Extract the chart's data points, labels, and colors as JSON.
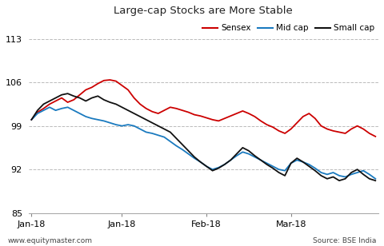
{
  "title": "Large-cap Stocks are More Stable",
  "ylabel_ticks": [
    85,
    92,
    99,
    106,
    113
  ],
  "footer_left": "www.equitymaster.com",
  "footer_right": "Source: BSE India",
  "sensex": [
    100.0,
    101.2,
    101.8,
    102.5,
    103.0,
    103.5,
    102.8,
    103.2,
    104.0,
    104.8,
    105.2,
    105.8,
    106.3,
    106.4,
    106.2,
    105.5,
    104.8,
    103.5,
    102.5,
    101.8,
    101.3,
    101.0,
    101.5,
    102.0,
    101.8,
    101.5,
    101.2,
    100.8,
    100.6,
    100.3,
    100.0,
    99.8,
    100.2,
    100.6,
    101.0,
    101.4,
    101.0,
    100.5,
    99.8,
    99.2,
    98.8,
    98.2,
    97.8,
    98.5,
    99.5,
    100.5,
    101.0,
    100.2,
    99.0,
    98.5,
    98.2,
    98.0,
    97.8,
    98.5,
    99.0,
    98.5,
    97.8,
    97.3
  ],
  "midcap": [
    100.0,
    101.0,
    101.5,
    102.0,
    101.5,
    101.8,
    102.0,
    101.5,
    101.0,
    100.5,
    100.2,
    100.0,
    99.8,
    99.5,
    99.2,
    99.0,
    99.2,
    99.0,
    98.5,
    98.0,
    97.8,
    97.5,
    97.2,
    96.5,
    95.8,
    95.2,
    94.5,
    93.8,
    93.2,
    92.5,
    92.0,
    92.3,
    92.8,
    93.5,
    94.2,
    94.8,
    94.5,
    94.0,
    93.5,
    93.0,
    92.5,
    92.0,
    91.8,
    93.0,
    93.5,
    93.2,
    92.8,
    92.2,
    91.5,
    91.2,
    91.5,
    91.0,
    90.8,
    91.2,
    91.5,
    91.8,
    91.2,
    90.5
  ],
  "smallcap": [
    100.0,
    101.5,
    102.5,
    103.0,
    103.5,
    104.0,
    104.2,
    103.8,
    103.5,
    103.0,
    103.5,
    103.8,
    103.2,
    102.8,
    102.5,
    102.0,
    101.5,
    101.0,
    100.5,
    100.0,
    99.5,
    99.0,
    98.5,
    98.0,
    97.0,
    96.0,
    95.0,
    94.0,
    93.2,
    92.5,
    91.8,
    92.2,
    92.8,
    93.5,
    94.5,
    95.5,
    95.0,
    94.2,
    93.5,
    92.8,
    92.2,
    91.5,
    91.0,
    93.0,
    93.8,
    93.2,
    92.5,
    91.8,
    91.0,
    90.5,
    90.8,
    90.2,
    90.5,
    91.5,
    92.0,
    91.2,
    90.5,
    90.2
  ],
  "sensex_color": "#cc0000",
  "midcap_color": "#1a7abf",
  "smallcap_color": "#111111",
  "background_color": "#ffffff",
  "grid_color": "#bbbbbb",
  "xtick_indices": [
    0,
    15,
    29,
    43
  ],
  "xtick_labels": [
    "Jan-18",
    "Jan-18",
    "Feb-18",
    "Mar-18"
  ]
}
